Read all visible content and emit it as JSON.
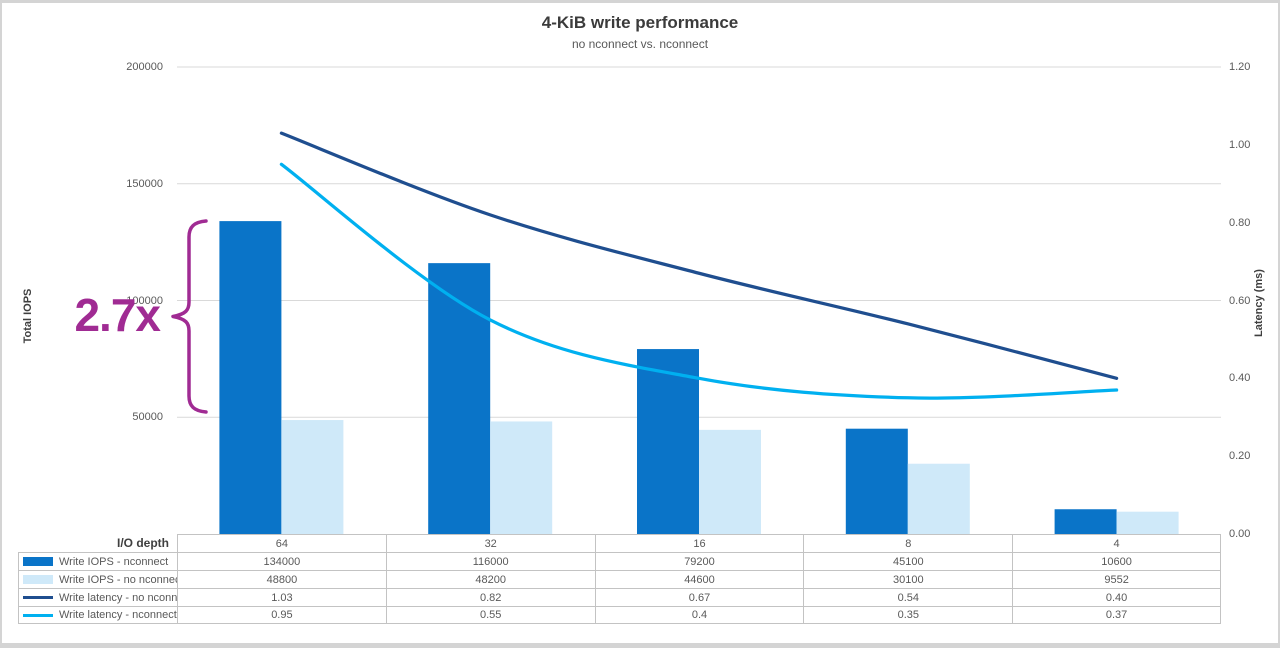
{
  "title": "4-KiB write performance",
  "subtitle": "no nconnect vs. nconnect",
  "annotation": {
    "label": "2.7x",
    "color": "#A02B93"
  },
  "axes": {
    "left_title": "Total IOPS",
    "right_title": "Latency (ms)",
    "left_ticks": [
      "200000",
      "150000",
      "100000",
      "50000"
    ],
    "right_ticks": [
      "1.20",
      "1.00",
      "0.80",
      "0.60",
      "0.40",
      "0.20",
      "0.00"
    ]
  },
  "chart_data": {
    "type": "bar",
    "subtype": "combo bar+line, dual axis",
    "title": "4-KiB write performance",
    "subtitle": "no nconnect vs. nconnect",
    "x_label": "I/O depth",
    "categories": [
      "64",
      "32",
      "16",
      "8",
      "4"
    ],
    "left_axis": {
      "label": "Total IOPS",
      "min": 0,
      "max": 200000,
      "step": 50000
    },
    "right_axis": {
      "label": "Latency (ms)",
      "min": 0,
      "max": 1.2,
      "step": 0.2
    },
    "grid": "horizontal only, at left-axis steps",
    "legend_position": "table below chart",
    "series": [
      {
        "name": "Write IOPS - nconnect",
        "type": "bar",
        "axis": "left",
        "color": "#0A74C8",
        "values": [
          134000,
          116000,
          79200,
          45100,
          10600
        ]
      },
      {
        "name": "Write IOPS - no nconnect",
        "type": "bar",
        "axis": "left",
        "color": "#CFE9F9",
        "values": [
          48800,
          48200,
          44600,
          30100,
          9552
        ]
      },
      {
        "name": "Write latency - no nconnect",
        "type": "line",
        "axis": "right",
        "color": "#1F4E8F",
        "values": [
          1.03,
          0.82,
          0.67,
          0.54,
          0.4
        ]
      },
      {
        "name": "Write latency - nconnect",
        "type": "line",
        "axis": "right",
        "color": "#00B0F0",
        "values": [
          0.95,
          0.55,
          0.4,
          0.35,
          0.37
        ]
      }
    ],
    "annotation": "2.7x speedup brace between nconnect and no-nconnect bar tops at I/O depth 64"
  },
  "table": {
    "header": {
      "label": "I/O depth",
      "columns": [
        "64",
        "32",
        "16",
        "8",
        "4"
      ]
    },
    "rows": [
      {
        "label": "Write IOPS - nconnect",
        "cells": [
          "134000",
          "116000",
          "79200",
          "45100",
          "10600"
        ]
      },
      {
        "label": "Write IOPS - no nconnect",
        "cells": [
          "48800",
          "48200",
          "44600",
          "30100",
          "9552"
        ]
      },
      {
        "label": "Write latency - no nconnect",
        "cells": [
          "1.03",
          "0.82",
          "0.67",
          "0.54",
          "0.40"
        ]
      },
      {
        "label": "Write latency - nconnect",
        "cells": [
          "0.95",
          "0.55",
          "0.4",
          "0.35",
          "0.37"
        ]
      }
    ]
  }
}
